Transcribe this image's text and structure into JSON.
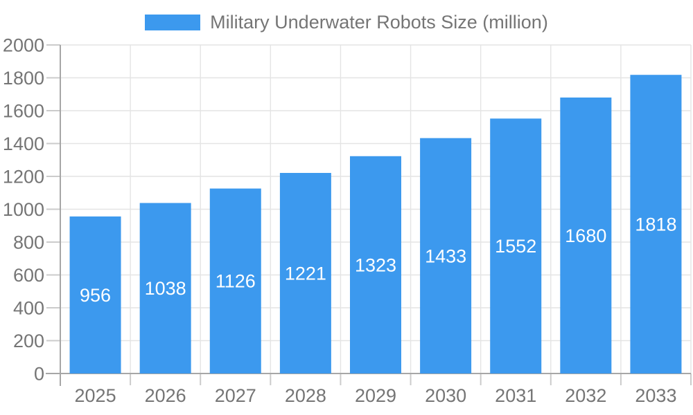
{
  "chart_data": {
    "type": "bar",
    "title": "Military Underwater Robots Size (million)",
    "categories": [
      "2025",
      "2026",
      "2027",
      "2028",
      "2029",
      "2030",
      "2031",
      "2032",
      "2033"
    ],
    "values": [
      956,
      1038,
      1126,
      1221,
      1323,
      1433,
      1552,
      1680,
      1818
    ],
    "xlabel": "",
    "ylabel": "",
    "ylim": [
      0,
      2000
    ],
    "ytick_step": 200,
    "yticks": [
      0,
      200,
      400,
      600,
      800,
      1000,
      1200,
      1400,
      1600,
      1800,
      2000
    ],
    "grid": true,
    "legend_position": "top",
    "value_labels": "inside-center",
    "colors": {
      "bar": "#3C99EE",
      "value_label": "#ffffff",
      "axis_text": "#757575",
      "grid_line": "#e4e4e4",
      "axis_line": "#a6a6a6",
      "tick_line": "#cbcbcb",
      "background": "#ffffff"
    }
  }
}
